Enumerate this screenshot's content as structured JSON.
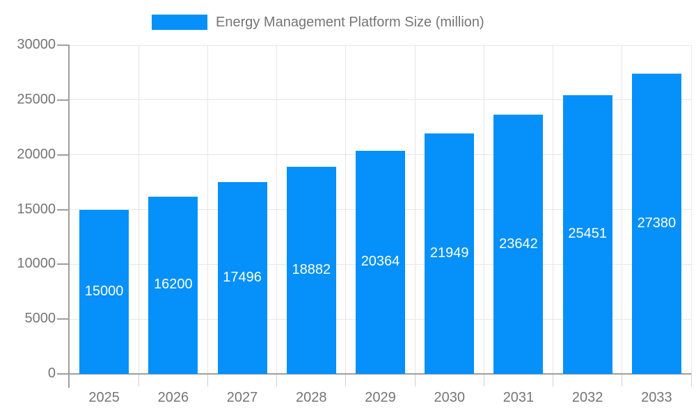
{
  "chart_data": {
    "type": "bar",
    "legend": "Energy Management Platform Size (million)",
    "legend_position": "top",
    "categories": [
      "2025",
      "2026",
      "2027",
      "2028",
      "2029",
      "2030",
      "2031",
      "2032",
      "2033"
    ],
    "values": [
      15000,
      16200,
      17496,
      18882,
      20364,
      21949,
      23642,
      25451,
      27380
    ],
    "value_labels_shown": true,
    "value_label_position": "inside-center",
    "xlabel": "",
    "ylabel": "",
    "ylim": [
      0,
      30000
    ],
    "yticks": [
      0,
      5000,
      10000,
      15000,
      20000,
      25000,
      30000
    ],
    "grid": true,
    "vertical_gridlines": true,
    "colors": {
      "bar": "#0590fa",
      "value_label": "#ffffff",
      "axis_label": "#757575",
      "gridline": "#e6e6e6",
      "axis_line": "#9e9e9e",
      "boundary_tick": "#cfcfcf",
      "background": "#ffffff"
    }
  }
}
